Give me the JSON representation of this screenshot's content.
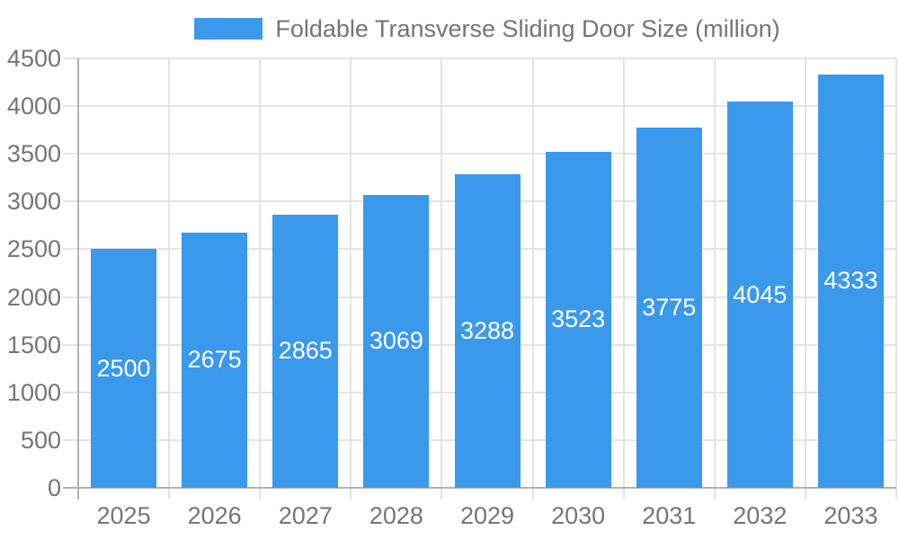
{
  "chart_data": {
    "type": "bar",
    "title": "Foldable Transverse Sliding Door Size (million)",
    "categories": [
      "2025",
      "2026",
      "2027",
      "2028",
      "2029",
      "2030",
      "2031",
      "2032",
      "2033"
    ],
    "values": [
      2500,
      2675,
      2865,
      3069,
      3288,
      3523,
      3775,
      4045,
      4333
    ],
    "xlabel": "",
    "ylabel": "",
    "ylim": [
      0,
      4500
    ],
    "yticks": [
      0,
      500,
      1000,
      1500,
      2000,
      2500,
      3000,
      3500,
      4000,
      4500
    ],
    "ytick_labels": [
      "0",
      "500",
      "1000",
      "1500",
      "2000",
      "2500",
      "3000",
      "3500",
      "4000",
      "4500"
    ],
    "grid": true,
    "legend_position": "top-center",
    "value_labels": "inside-center",
    "colors": {
      "bar": "#3B99EC",
      "grid": "#E3E3E3",
      "axis": "#B0B0B0",
      "text": "#757575",
      "value_label": "#FFFFFF",
      "background": "#FFFFFF"
    }
  }
}
